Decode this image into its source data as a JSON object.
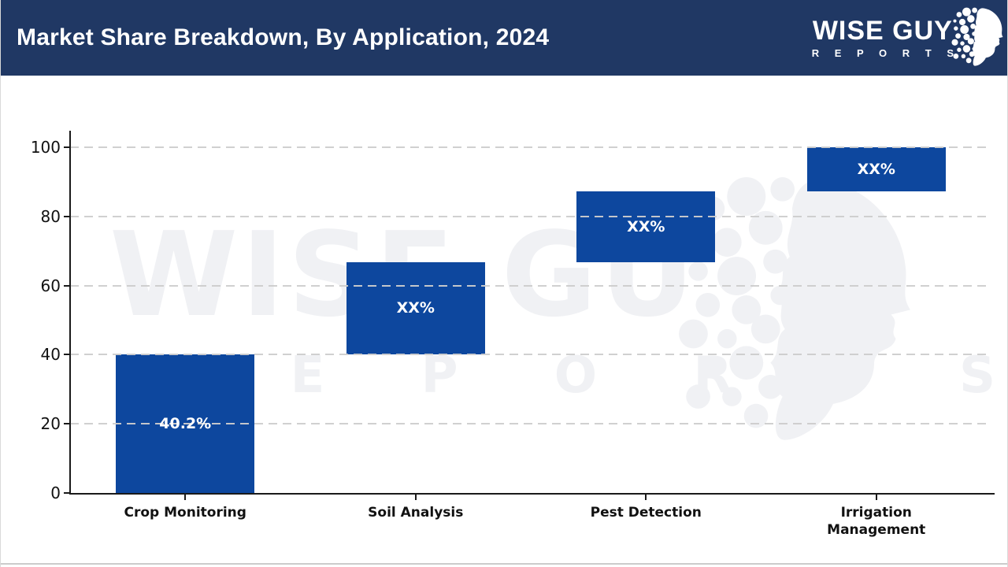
{
  "header": {
    "title": "Market Share Breakdown, By Application, 2024",
    "bg_color": "#203864",
    "brand": {
      "name": "WISE GUY",
      "tagline": "R E P O R T S"
    }
  },
  "watermark": {
    "text": "WISE GU",
    "subtext": "R E P O R T S",
    "color": "#f0f1f4"
  },
  "chart_data": {
    "type": "bar",
    "subtype": "waterfall",
    "title": "Market Share Breakdown, By Application, 2024",
    "categories": [
      "Crop Monitoring",
      "Soil Analysis",
      "Pest Detection",
      "Irrigation Management"
    ],
    "bars": [
      {
        "category": "Crop Monitoring",
        "start": 0,
        "end": 40.2,
        "label": "40.2%"
      },
      {
        "category": "Soil Analysis",
        "start": 40.2,
        "end": 66.8,
        "label": "XX%"
      },
      {
        "category": "Pest Detection",
        "start": 66.8,
        "end": 87.3,
        "label": "XX%"
      },
      {
        "category": "Irrigation Management",
        "start": 87.3,
        "end": 100,
        "label": "XX%"
      }
    ],
    "y_ticks": [
      0,
      20,
      40,
      60,
      80,
      100
    ],
    "ylim": [
      0,
      104
    ],
    "xlabel": "",
    "ylabel": "",
    "grid": true,
    "grid_style": "dashed",
    "legend": false,
    "bar_color": "#0d479e",
    "bar_label_color": "#ffffff"
  }
}
